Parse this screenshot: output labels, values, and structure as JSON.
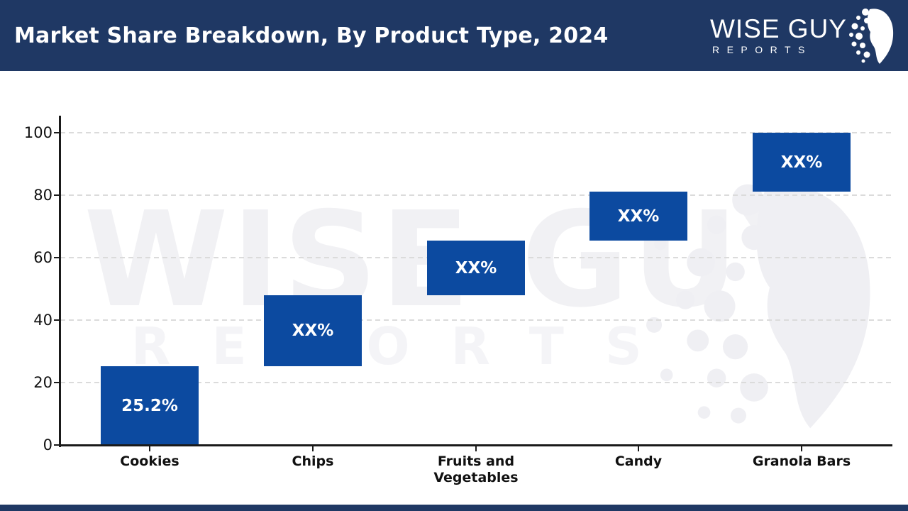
{
  "header": {
    "title": "Market Share Breakdown, By Product Type, 2024",
    "logo": {
      "brand": "WISE GUY",
      "sub": "REPORTS"
    }
  },
  "watermark": {
    "brand": "WISE GUY",
    "sub": "REPORTS"
  },
  "chart_data": {
    "type": "bar",
    "subtype": "waterfall",
    "title": "Market Share Breakdown, By Product Type, 2024",
    "categories": [
      "Cookies",
      "Chips",
      "Fruits and Vegetables",
      "Candy",
      "Granola Bars"
    ],
    "bars": [
      {
        "category_lines": [
          "Cookies"
        ],
        "start": 0,
        "end": 25.2,
        "label": "25.2%"
      },
      {
        "category_lines": [
          "Chips"
        ],
        "start": 25.2,
        "end": 48.0,
        "label": "XX%"
      },
      {
        "category_lines": [
          "Fruits and",
          "Vegetables"
        ],
        "start": 48.0,
        "end": 65.4,
        "label": "XX%"
      },
      {
        "category_lines": [
          "Candy"
        ],
        "start": 65.4,
        "end": 81.1,
        "label": "XX%"
      },
      {
        "category_lines": [
          "Granola Bars"
        ],
        "start": 81.1,
        "end": 100.0,
        "label": "XX%"
      }
    ],
    "xlabel": "",
    "ylabel": "",
    "ylim": [
      0,
      100
    ],
    "yticks": [
      0,
      20,
      40,
      60,
      80,
      100
    ],
    "grid": "horizontal-dashed",
    "legend": "none",
    "colors": {
      "bar": "#0c4aa0",
      "bar_label": "#ffffff",
      "axis": "#1a1a1a",
      "grid": "#dbdbdb",
      "header_bg": "#1f3864",
      "watermark": "#f1f1f4"
    }
  }
}
